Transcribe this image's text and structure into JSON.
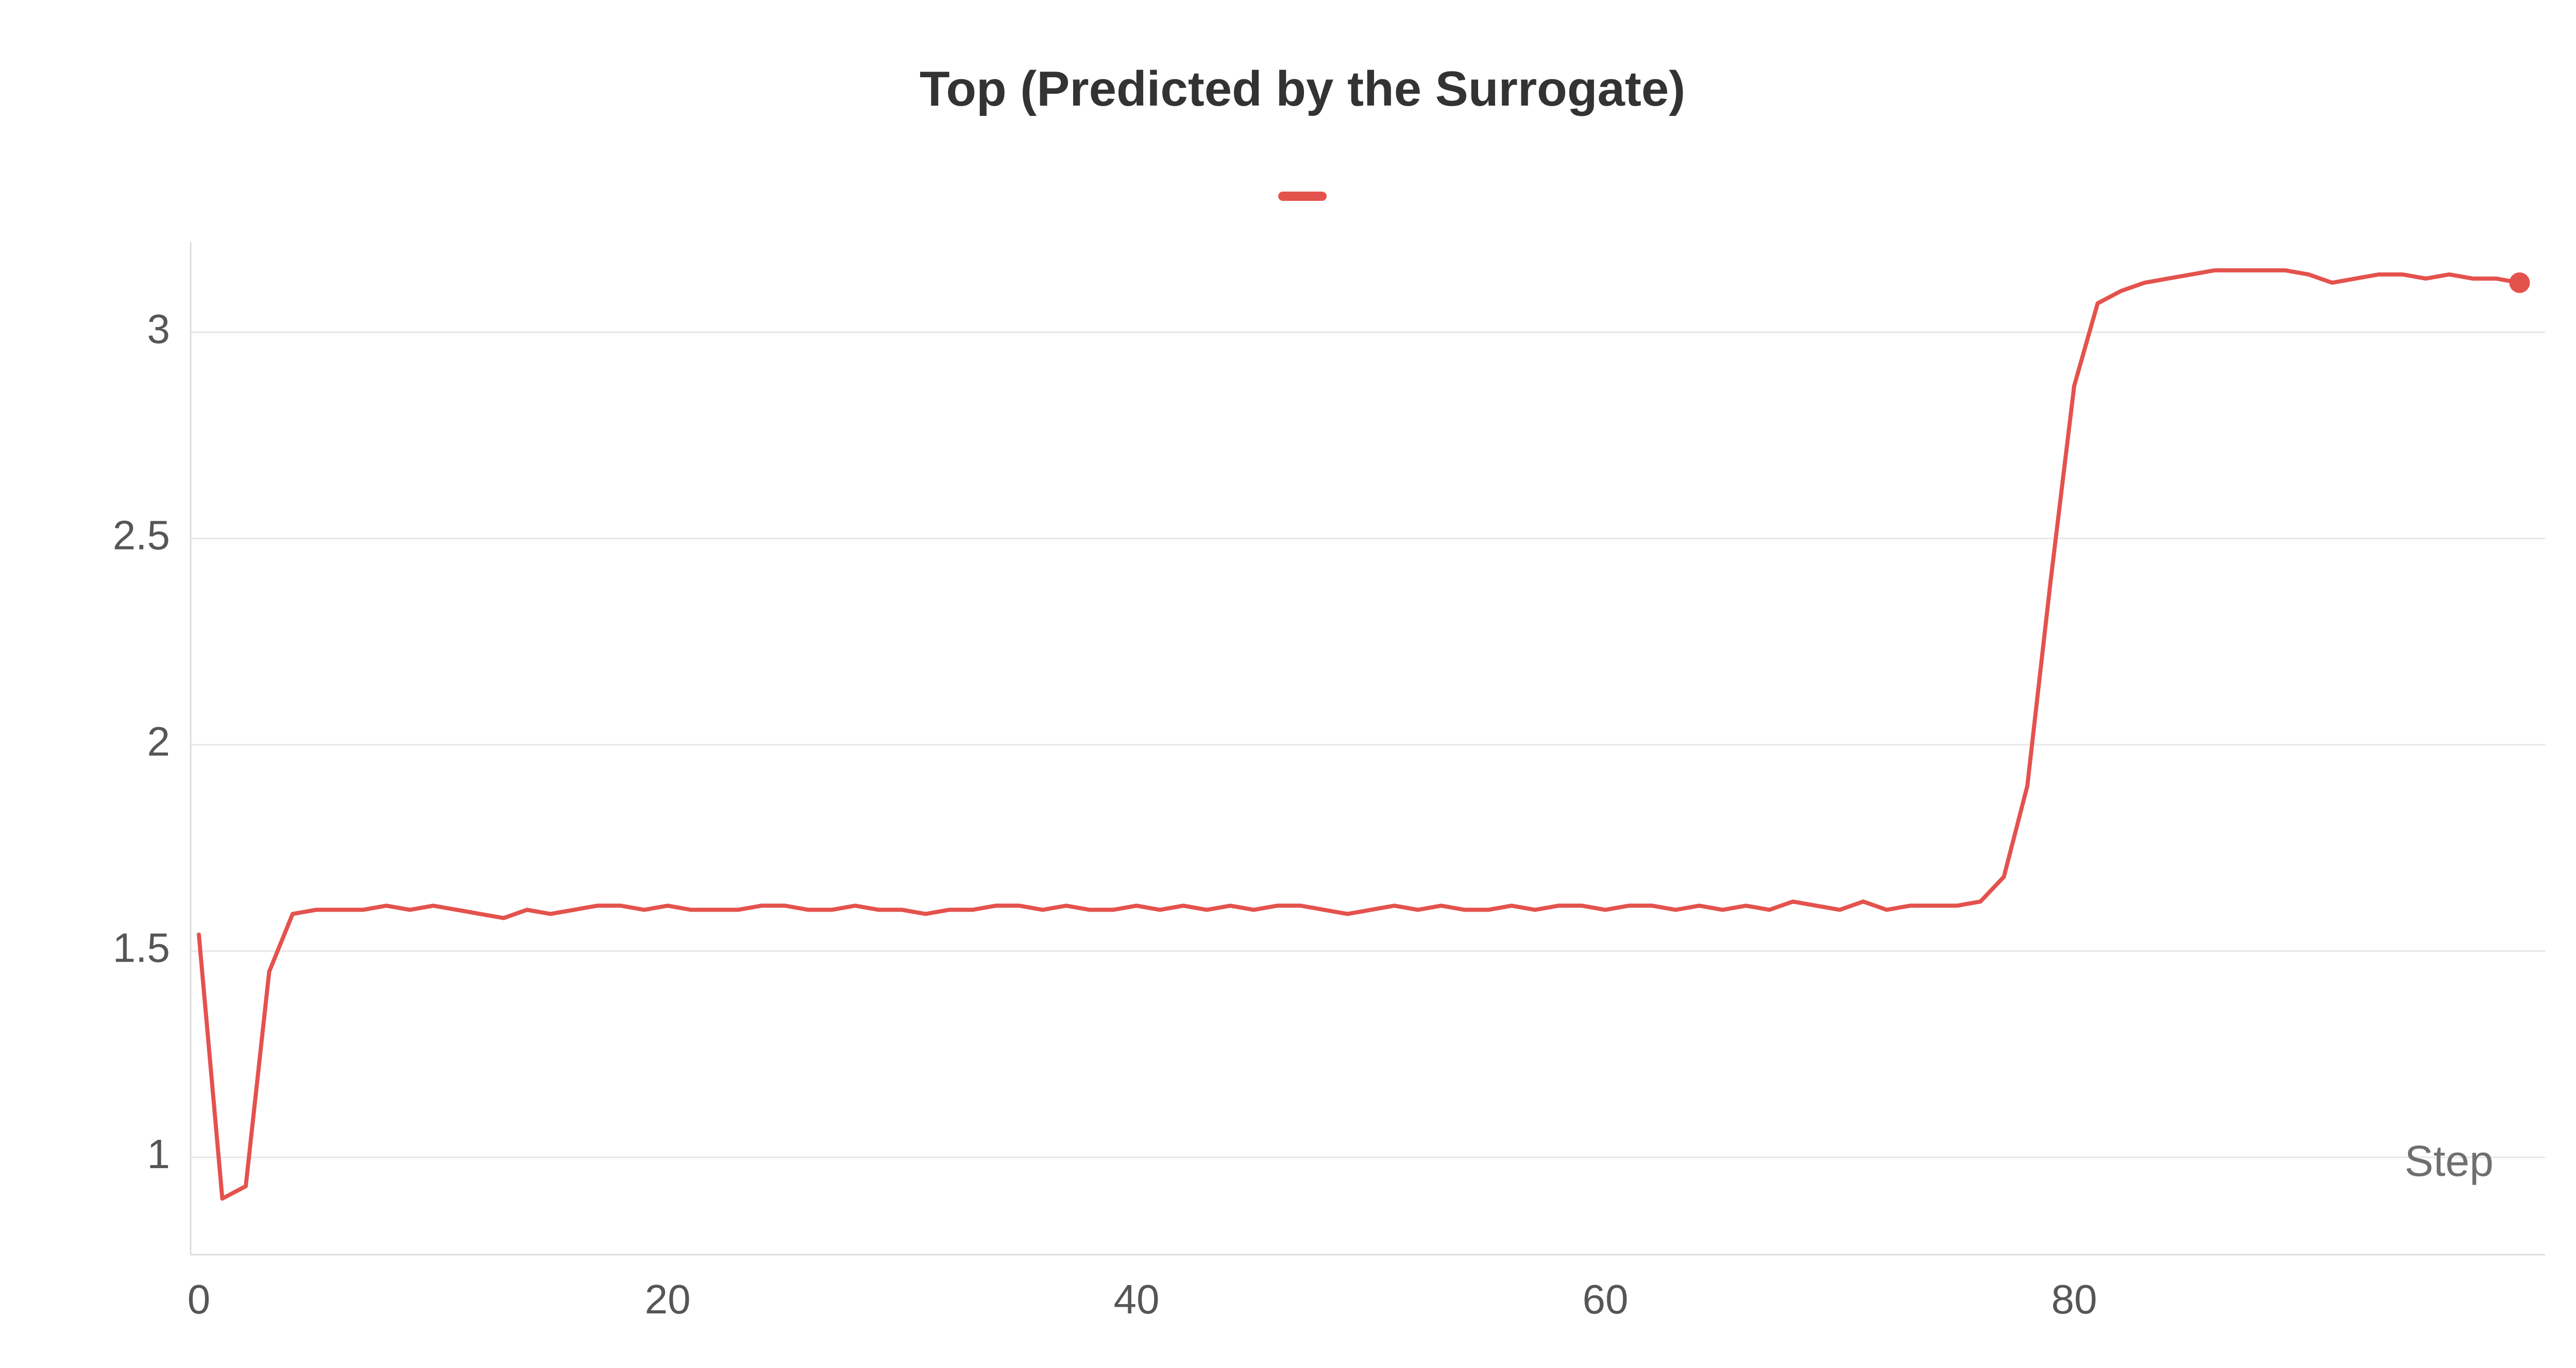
{
  "chart_data": {
    "type": "line",
    "title": "Top (Predicted by the Surrogate)",
    "xlabel": "Step",
    "ylabel": "",
    "x_start": 0,
    "x_step": 1,
    "xlim": [
      0,
      99
    ],
    "ylim": [
      0.85,
      3.25
    ],
    "grid": "horizontal",
    "legend_position": "top-center",
    "x_ticks": [
      {
        "value": 0,
        "label": "0"
      },
      {
        "value": 20,
        "label": "20"
      },
      {
        "value": 40,
        "label": "40"
      },
      {
        "value": 60,
        "label": "60"
      },
      {
        "value": 80,
        "label": "80"
      }
    ],
    "y_ticks": [
      {
        "value": 1,
        "label": "1"
      },
      {
        "value": 1.5,
        "label": "1.5"
      },
      {
        "value": 2,
        "label": "2"
      },
      {
        "value": 2.5,
        "label": "2.5"
      },
      {
        "value": 3,
        "label": "3"
      }
    ],
    "series": [
      {
        "name": "Top (Predicted by the Surrogate)",
        "color": "#e4524d",
        "marker_end": true,
        "y": [
          1.54,
          0.9,
          0.93,
          1.45,
          1.59,
          1.6,
          1.6,
          1.6,
          1.61,
          1.6,
          1.61,
          1.6,
          1.59,
          1.58,
          1.6,
          1.59,
          1.6,
          1.61,
          1.61,
          1.6,
          1.61,
          1.6,
          1.6,
          1.6,
          1.61,
          1.61,
          1.6,
          1.6,
          1.61,
          1.6,
          1.6,
          1.59,
          1.6,
          1.6,
          1.61,
          1.61,
          1.6,
          1.61,
          1.6,
          1.6,
          1.61,
          1.6,
          1.61,
          1.6,
          1.61,
          1.6,
          1.61,
          1.61,
          1.6,
          1.59,
          1.6,
          1.61,
          1.6,
          1.61,
          1.6,
          1.6,
          1.61,
          1.6,
          1.61,
          1.61,
          1.6,
          1.61,
          1.61,
          1.6,
          1.61,
          1.6,
          1.61,
          1.6,
          1.62,
          1.61,
          1.6,
          1.62,
          1.6,
          1.61,
          1.61,
          1.61,
          1.62,
          1.68,
          1.9,
          2.4,
          2.87,
          3.07,
          3.1,
          3.12,
          3.13,
          3.14,
          3.15,
          3.15,
          3.15,
          3.15,
          3.14,
          3.12,
          3.13,
          3.14,
          3.14,
          3.13,
          3.14,
          3.13,
          3.13,
          3.12
        ]
      }
    ],
    "colors": {
      "line": "#e4524d",
      "grid": "#e7e7e7",
      "axis": "#dcdcdc",
      "tick_label": "#565656",
      "title": "#333333",
      "xlabel": "#6f6f6f",
      "background": "#ffffff"
    }
  }
}
